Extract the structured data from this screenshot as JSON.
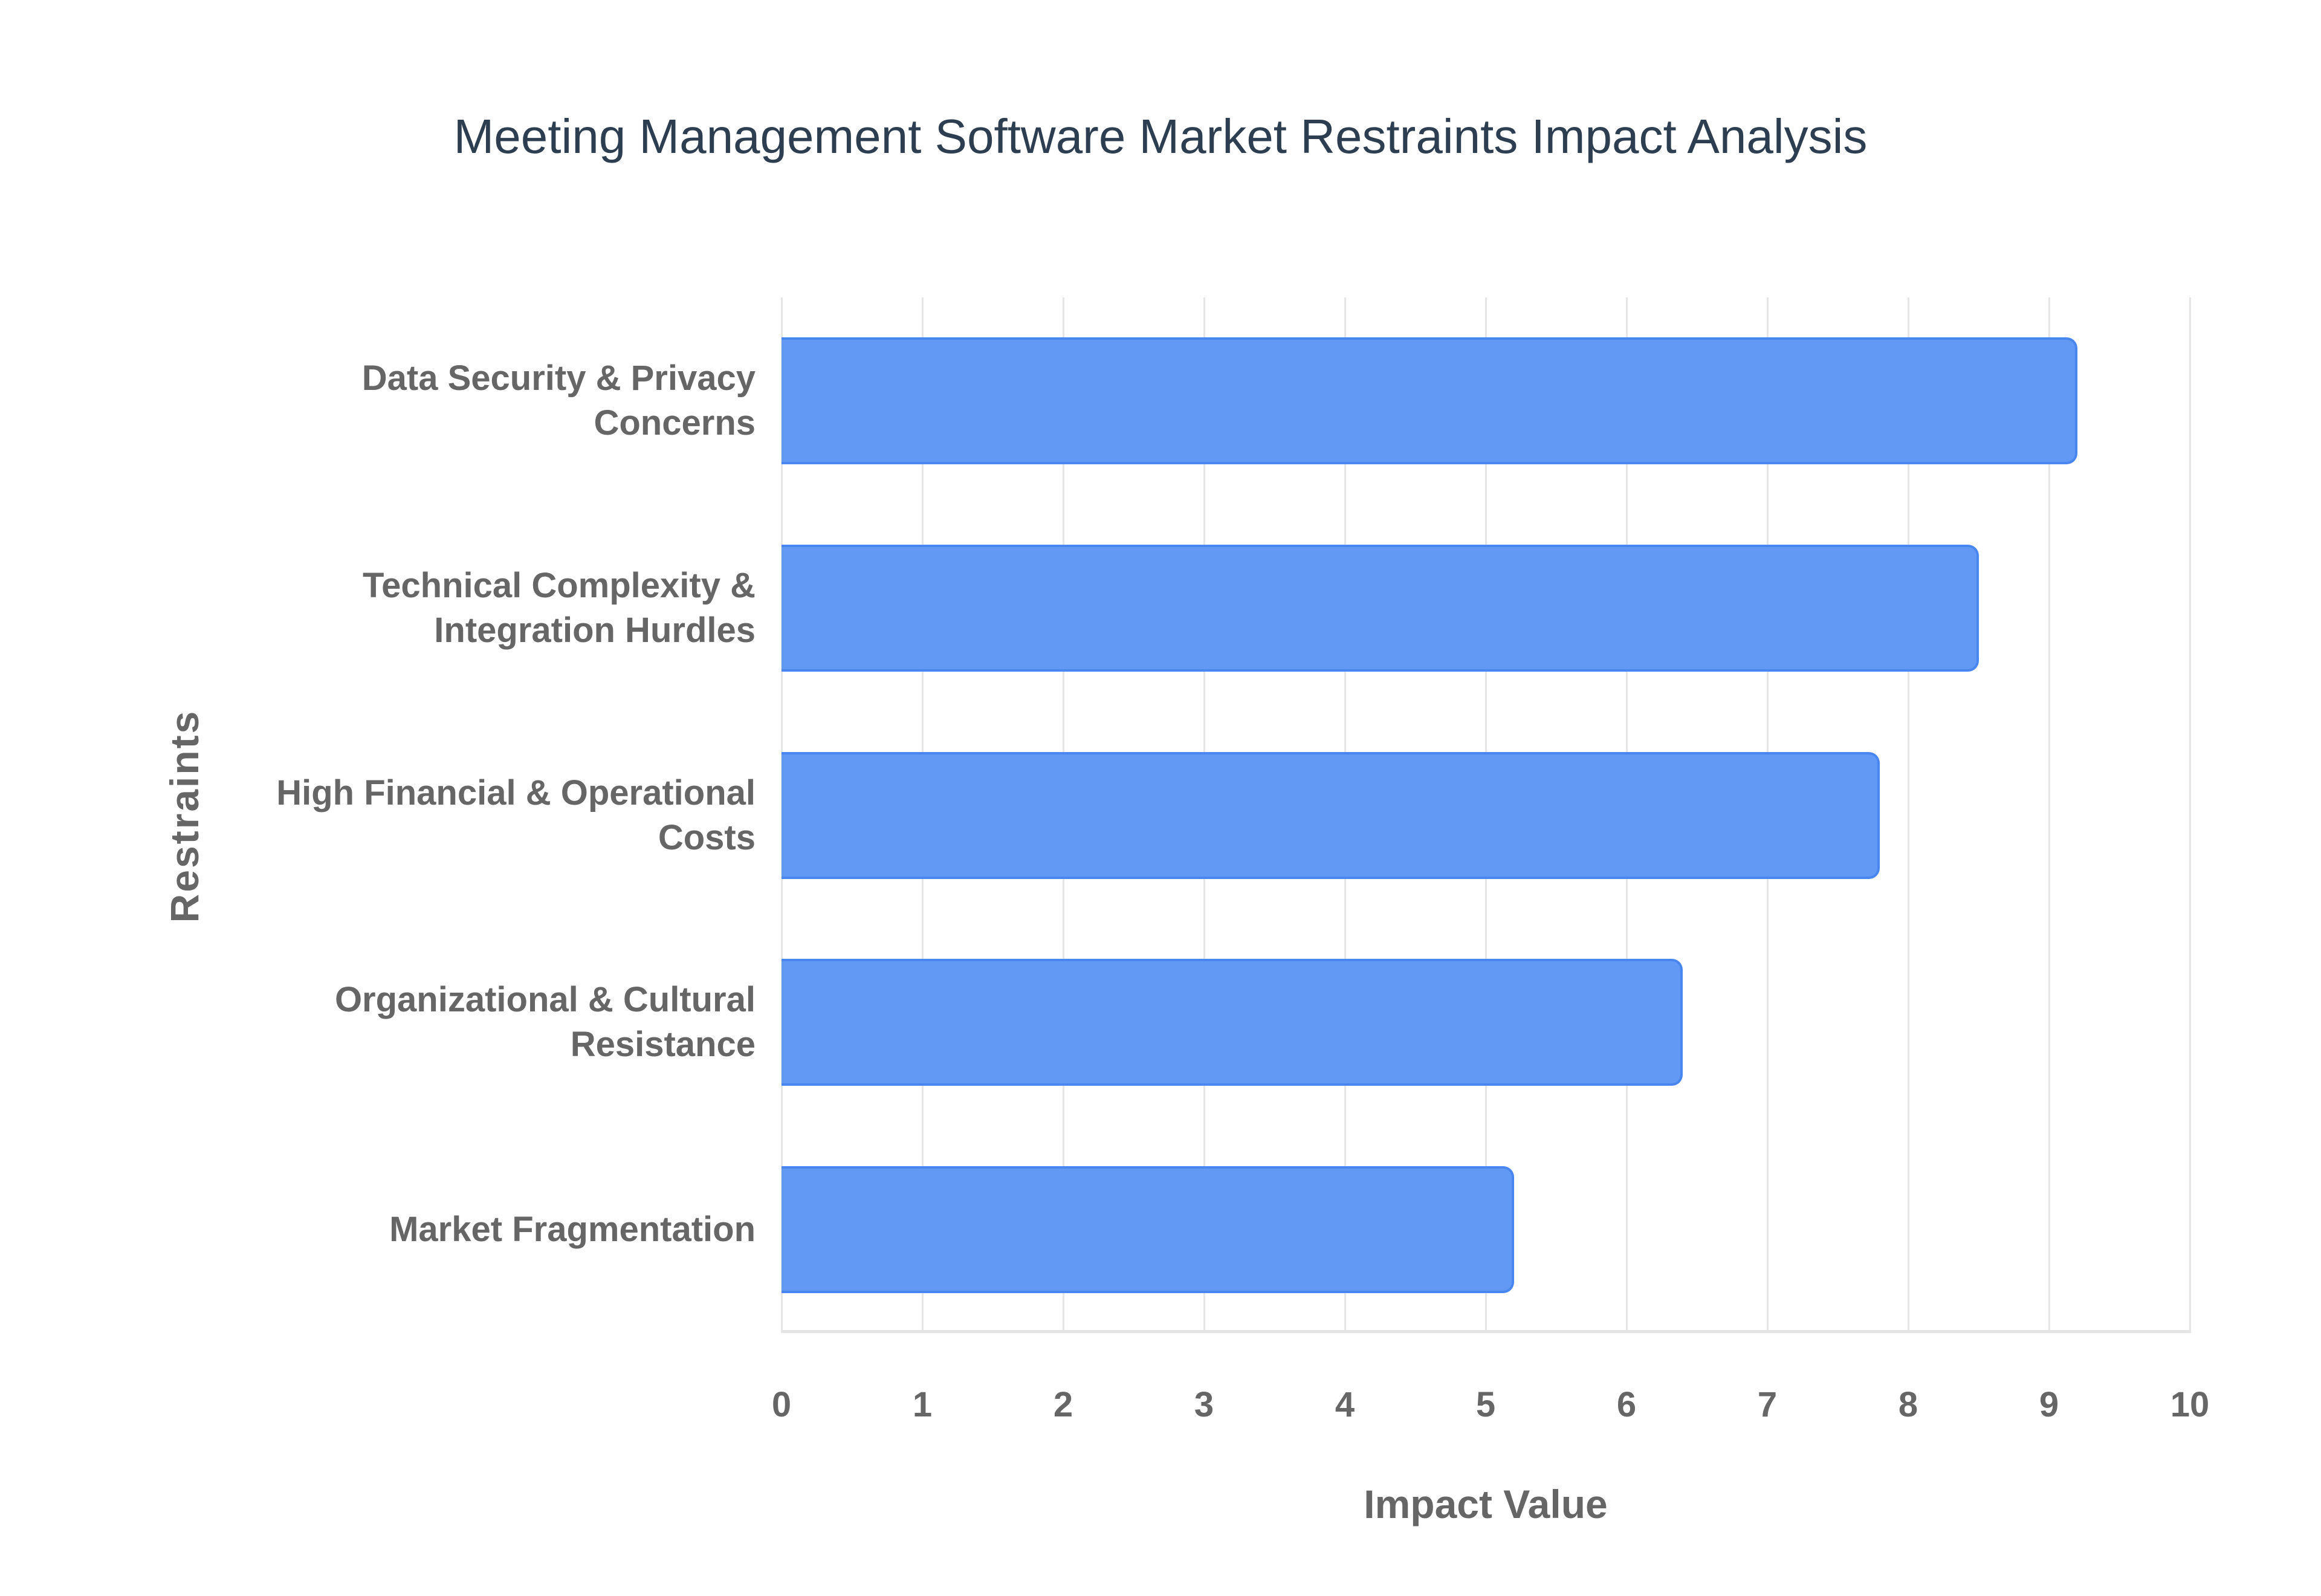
{
  "chart_data": {
    "type": "bar",
    "orientation": "horizontal",
    "title": "Meeting Management Software Market Restraints Impact Analysis",
    "xlabel": "Impact Value",
    "ylabel": "Restraints",
    "xlim": [
      0,
      10
    ],
    "x_ticks": [
      "0",
      "1",
      "2",
      "3",
      "4",
      "5",
      "6",
      "7",
      "8",
      "9",
      "10"
    ],
    "grid": true,
    "legend": null,
    "categories": [
      "Data Security & Privacy Concerns",
      "Technical Complexity & Integration Hurdles",
      "High Financial & Operational Costs",
      "Organizational & Cultural Resistance",
      "Market Fragmentation"
    ],
    "category_lines": [
      [
        "Data Security & Privacy",
        "Concerns"
      ],
      [
        "Technical Complexity &",
        "Integration Hurdles"
      ],
      [
        "High Financial & Operational",
        "Costs"
      ],
      [
        "Organizational & Cultural",
        "Resistance"
      ],
      [
        "Market Fragmentation"
      ]
    ],
    "values": [
      9.2,
      8.5,
      7.8,
      6.4,
      5.2
    ],
    "colors": {
      "bar_fill": "#6199f5",
      "bar_border": "#4a86f0",
      "title": "#2c3e50",
      "text": "#666666",
      "grid": "#e6e6e6"
    }
  }
}
